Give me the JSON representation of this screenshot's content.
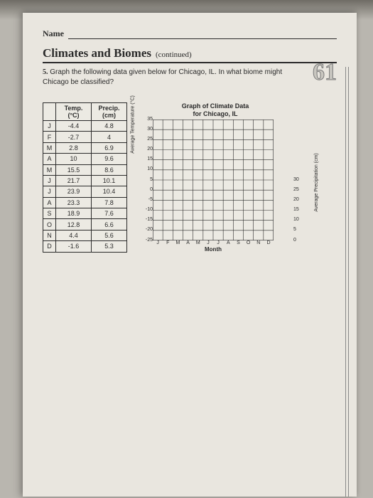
{
  "header": {
    "name_label": "Name",
    "title_main": "Climates and Biomes",
    "title_cont": "(continued)",
    "page_number": "61"
  },
  "question": {
    "number": "5.",
    "text_prefix": "Graph the following data given below for Chicago, IL. In what biome might Chicago be classified?"
  },
  "table": {
    "columns": [
      "",
      "Temp. (°C)",
      "Precip. (cm)"
    ],
    "rows": [
      [
        "J",
        "-4.4",
        "4.8"
      ],
      [
        "F",
        "-2.7",
        "4"
      ],
      [
        "M",
        "2.8",
        "6.9"
      ],
      [
        "A",
        "10",
        "9.6"
      ],
      [
        "M",
        "15.5",
        "8.6"
      ],
      [
        "J",
        "21.7",
        "10.1"
      ],
      [
        "J",
        "23.9",
        "10.4"
      ],
      [
        "A",
        "23.3",
        "7.8"
      ],
      [
        "S",
        "18.9",
        "7.6"
      ],
      [
        "O",
        "12.8",
        "6.6"
      ],
      [
        "N",
        "4.4",
        "5.6"
      ],
      [
        "D",
        "-1.6",
        "5.3"
      ]
    ]
  },
  "chart": {
    "title_line1": "Graph of Climate Data",
    "title_line2": "for Chicago, IL",
    "left_axis_label": "Average Temperature (°C)",
    "right_axis_label": "Average Precipitation (cm)",
    "x_axis_label": "Month",
    "left_ticks": [
      "35",
      "30",
      "25",
      "20",
      "15",
      "10",
      "5",
      "0",
      "-5",
      "-10",
      "-15",
      "-20",
      "-25"
    ],
    "right_ticks": [
      "30",
      "25",
      "20",
      "15",
      "10",
      "5",
      "0"
    ],
    "x_ticks": [
      "J",
      "F",
      "M",
      "A",
      "M",
      "J",
      "J",
      "A",
      "S",
      "O",
      "N",
      "D"
    ],
    "grid_color": "#2a2a2a",
    "background_color": "#eceae3",
    "rows": 12,
    "cols": 12
  }
}
